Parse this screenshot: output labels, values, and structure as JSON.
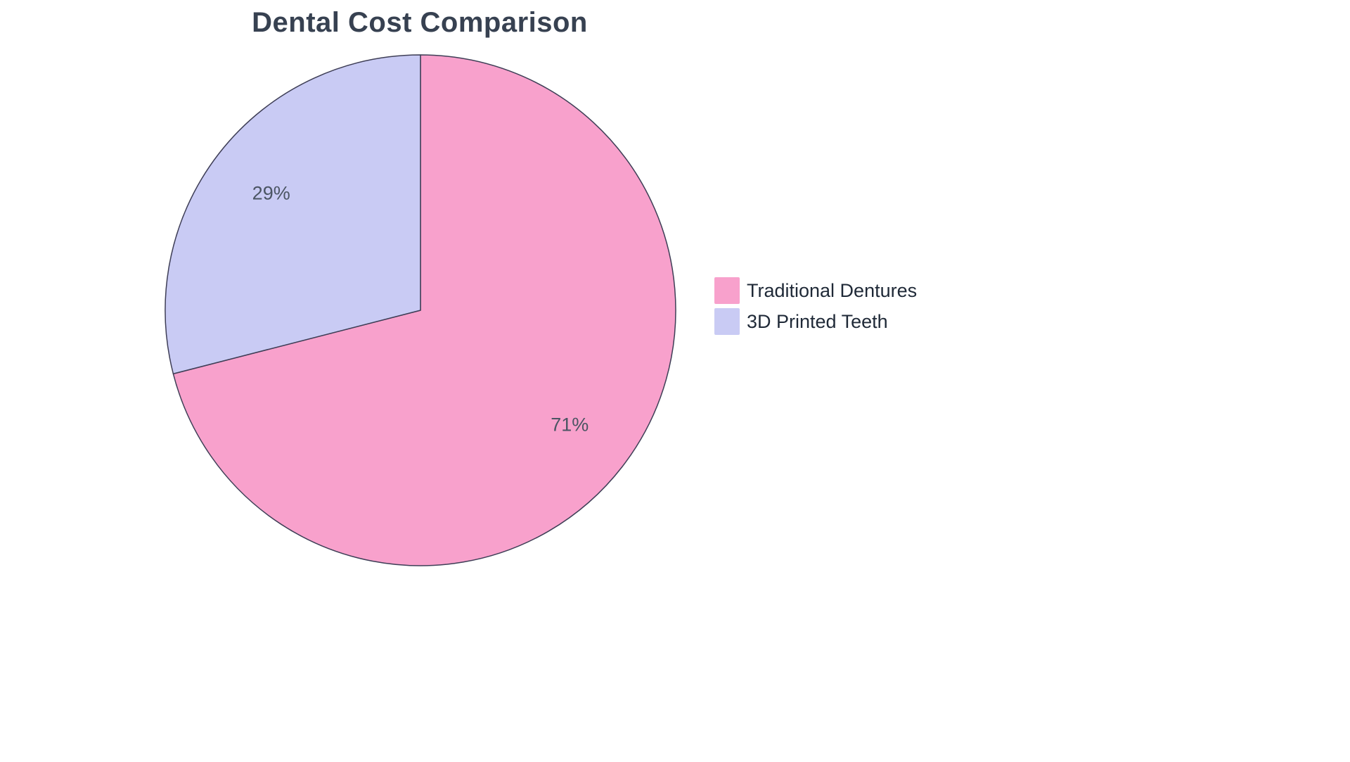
{
  "chart_data": {
    "type": "pie",
    "title": "Dental Cost Comparison",
    "legend_position": "right",
    "start_angle_deg": 0,
    "direction": "clockwise",
    "slices": [
      {
        "label": "Traditional Dentures",
        "value": 71,
        "pct_label": "71%",
        "color": "#F8A1CC"
      },
      {
        "label": "3D Printed Teeth",
        "value": 29,
        "pct_label": "29%",
        "color": "#C9CBF4"
      }
    ],
    "stroke_color": "#3E3E56",
    "stroke_width": 1.5,
    "title_color": "#374151",
    "label_color": "#4B5563",
    "legend_text_color": "#1F2937"
  }
}
